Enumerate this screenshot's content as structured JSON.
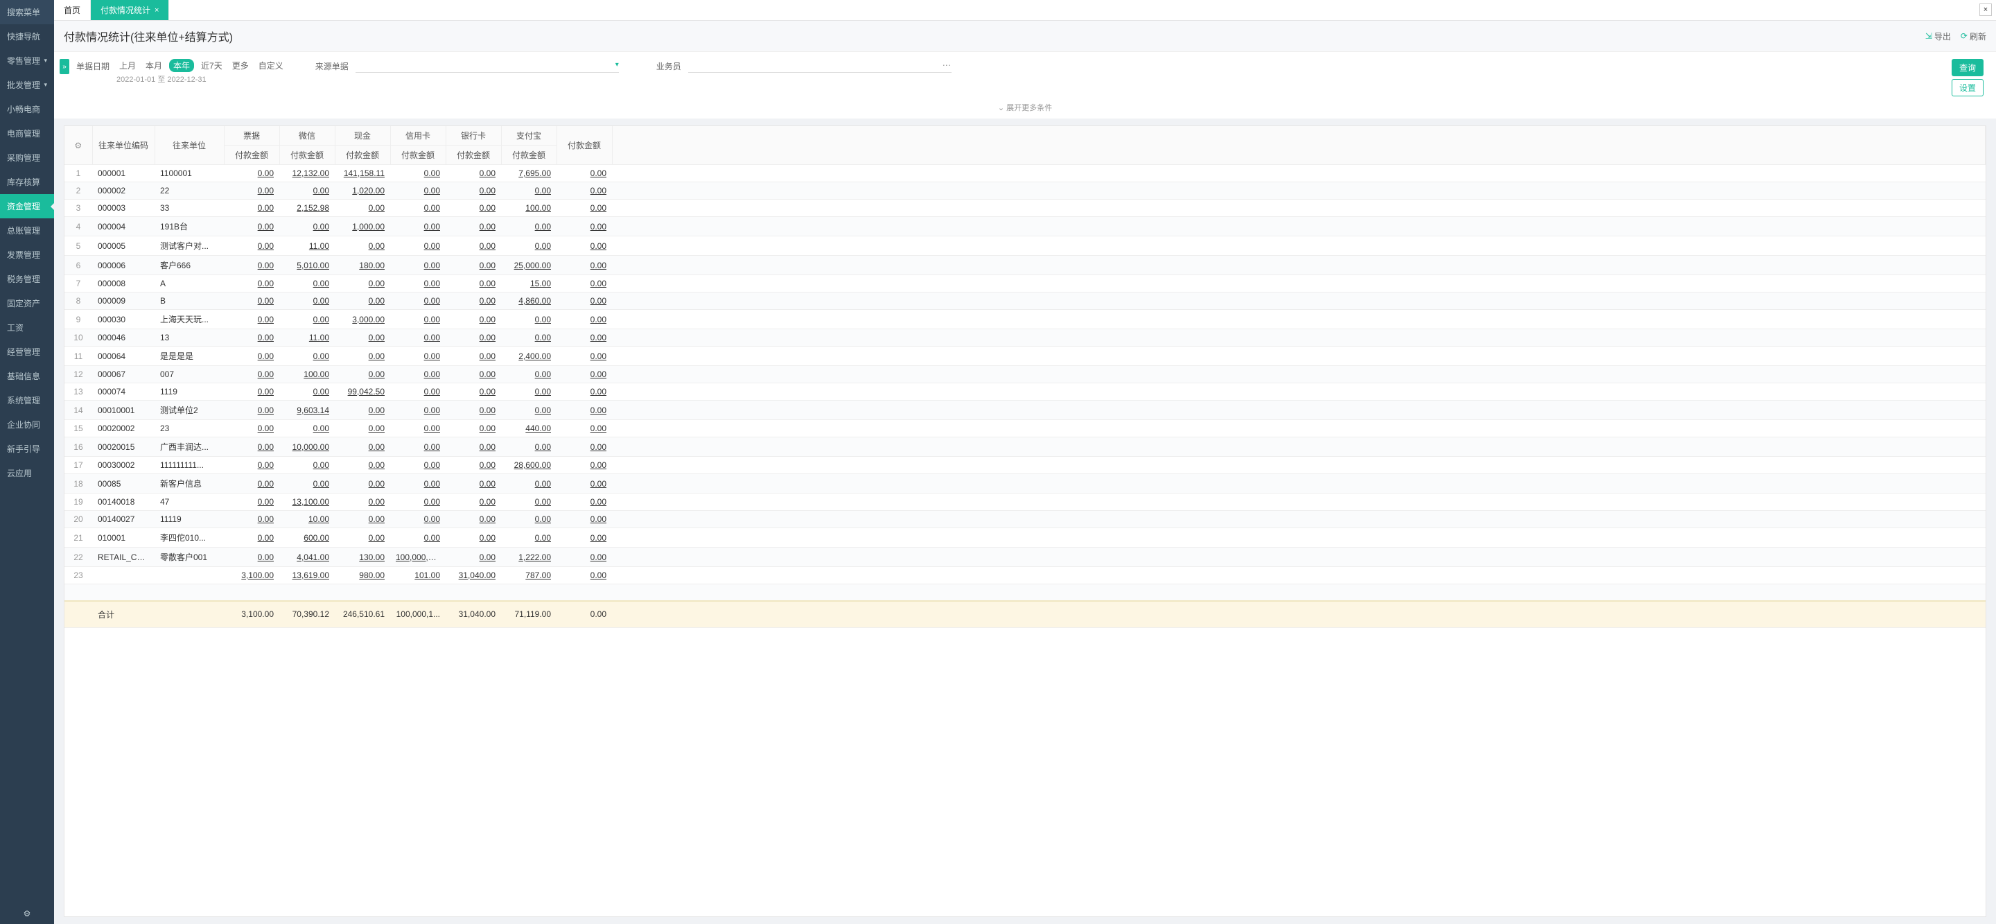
{
  "sidebar": {
    "items": [
      {
        "label": "搜索菜单",
        "expandable": false
      },
      {
        "label": "快捷导航",
        "expandable": false
      },
      {
        "label": "零售管理",
        "expandable": true
      },
      {
        "label": "批发管理",
        "expandable": true
      },
      {
        "label": "小畅电商",
        "expandable": false
      },
      {
        "label": "电商管理",
        "expandable": false
      },
      {
        "label": "采购管理",
        "expandable": false
      },
      {
        "label": "库存核算",
        "expandable": false
      },
      {
        "label": "资金管理",
        "expandable": false,
        "active": true
      },
      {
        "label": "总账管理",
        "expandable": false
      },
      {
        "label": "发票管理",
        "expandable": false
      },
      {
        "label": "税务管理",
        "expandable": false
      },
      {
        "label": "固定资产",
        "expandable": false
      },
      {
        "label": "工资",
        "expandable": false
      },
      {
        "label": "经营管理",
        "expandable": false
      },
      {
        "label": "基础信息",
        "expandable": false
      },
      {
        "label": "系统管理",
        "expandable": false
      },
      {
        "label": "企业协同",
        "expandable": false
      },
      {
        "label": "新手引导",
        "expandable": false
      },
      {
        "label": "云应用",
        "expandable": false
      }
    ]
  },
  "tabs": [
    {
      "label": "首页",
      "closable": false
    },
    {
      "label": "付款情况统计",
      "closable": true,
      "active": true
    }
  ],
  "page": {
    "title": "付款情况统计(往来单位+结算方式)",
    "export_label": "导出",
    "refresh_label": "刷新"
  },
  "filter": {
    "date_label": "单据日期",
    "date_opts": [
      "上月",
      "本月",
      "本年",
      "近7天",
      "更多",
      "自定义"
    ],
    "date_active_idx": 2,
    "date_range": "2022-01-01 至 2022-12-31",
    "source_label": "来源单据",
    "sales_label": "业务员",
    "btn_query": "查询",
    "btn_config": "设置",
    "expand_more": "展开更多条件"
  },
  "table": {
    "group_headers": [
      "",
      "",
      "",
      "票据",
      "微信",
      "现金",
      "信用卡",
      "银行卡",
      "支付宝",
      ""
    ],
    "sub_headers": [
      "",
      "往来单位编码",
      "往来单位",
      "付款金额",
      "付款金额",
      "付款金额",
      "付款金额",
      "付款金额",
      "付款金额",
      "付款金额"
    ],
    "rows": [
      {
        "idx": "1",
        "code": "000001",
        "name": "1100001",
        "amts": [
          "0.00",
          "12,132.00",
          "141,158.11",
          "0.00",
          "0.00",
          "7,695.00",
          "0.00"
        ]
      },
      {
        "idx": "2",
        "code": "000002",
        "name": "22",
        "amts": [
          "0.00",
          "0.00",
          "1,020.00",
          "0.00",
          "0.00",
          "0.00",
          "0.00"
        ]
      },
      {
        "idx": "3",
        "code": "000003",
        "name": "33",
        "amts": [
          "0.00",
          "2,152.98",
          "0.00",
          "0.00",
          "0.00",
          "100.00",
          "0.00"
        ]
      },
      {
        "idx": "4",
        "code": "000004",
        "name": "191B台",
        "amts": [
          "0.00",
          "0.00",
          "1,000.00",
          "0.00",
          "0.00",
          "0.00",
          "0.00"
        ]
      },
      {
        "idx": "5",
        "code": "000005",
        "name": "测试客户对...",
        "amts": [
          "0.00",
          "11.00",
          "0.00",
          "0.00",
          "0.00",
          "0.00",
          "0.00"
        ]
      },
      {
        "idx": "6",
        "code": "000006",
        "name": "客户666",
        "amts": [
          "0.00",
          "5,010.00",
          "180.00",
          "0.00",
          "0.00",
          "25,000.00",
          "0.00"
        ]
      },
      {
        "idx": "7",
        "code": "000008",
        "name": "A",
        "amts": [
          "0.00",
          "0.00",
          "0.00",
          "0.00",
          "0.00",
          "15.00",
          "0.00"
        ]
      },
      {
        "idx": "8",
        "code": "000009",
        "name": "B",
        "amts": [
          "0.00",
          "0.00",
          "0.00",
          "0.00",
          "0.00",
          "4,860.00",
          "0.00"
        ]
      },
      {
        "idx": "9",
        "code": "000030",
        "name": "上海天天玩...",
        "amts": [
          "0.00",
          "0.00",
          "3,000.00",
          "0.00",
          "0.00",
          "0.00",
          "0.00"
        ]
      },
      {
        "idx": "10",
        "code": "000046",
        "name": "13",
        "amts": [
          "0.00",
          "11.00",
          "0.00",
          "0.00",
          "0.00",
          "0.00",
          "0.00"
        ]
      },
      {
        "idx": "11",
        "code": "000064",
        "name": "是是是是",
        "amts": [
          "0.00",
          "0.00",
          "0.00",
          "0.00",
          "0.00",
          "2,400.00",
          "0.00"
        ]
      },
      {
        "idx": "12",
        "code": "000067",
        "name": "007",
        "amts": [
          "0.00",
          "100.00",
          "0.00",
          "0.00",
          "0.00",
          "0.00",
          "0.00"
        ]
      },
      {
        "idx": "13",
        "code": "000074",
        "name": "1119",
        "amts": [
          "0.00",
          "0.00",
          "99,042.50",
          "0.00",
          "0.00",
          "0.00",
          "0.00"
        ]
      },
      {
        "idx": "14",
        "code": "00010001",
        "name": "测试单位2",
        "amts": [
          "0.00",
          "9,603.14",
          "0.00",
          "0.00",
          "0.00",
          "0.00",
          "0.00"
        ]
      },
      {
        "idx": "15",
        "code": "00020002",
        "name": "23",
        "amts": [
          "0.00",
          "0.00",
          "0.00",
          "0.00",
          "0.00",
          "440.00",
          "0.00"
        ]
      },
      {
        "idx": "16",
        "code": "00020015",
        "name": "广西丰润达...",
        "amts": [
          "0.00",
          "10,000.00",
          "0.00",
          "0.00",
          "0.00",
          "0.00",
          "0.00"
        ]
      },
      {
        "idx": "17",
        "code": "00030002",
        "name": "111111111...",
        "amts": [
          "0.00",
          "0.00",
          "0.00",
          "0.00",
          "0.00",
          "28,600.00",
          "0.00"
        ]
      },
      {
        "idx": "18",
        "code": "00085",
        "name": "新客户信息",
        "amts": [
          "0.00",
          "0.00",
          "0.00",
          "0.00",
          "0.00",
          "0.00",
          "0.00"
        ]
      },
      {
        "idx": "19",
        "code": "00140018",
        "name": "47",
        "amts": [
          "0.00",
          "13,100.00",
          "0.00",
          "0.00",
          "0.00",
          "0.00",
          "0.00"
        ]
      },
      {
        "idx": "20",
        "code": "00140027",
        "name": "11119",
        "amts": [
          "0.00",
          "10.00",
          "0.00",
          "0.00",
          "0.00",
          "0.00",
          "0.00"
        ]
      },
      {
        "idx": "21",
        "code": "010001",
        "name": "李四佗010...",
        "amts": [
          "0.00",
          "600.00",
          "0.00",
          "0.00",
          "0.00",
          "0.00",
          "0.00"
        ]
      },
      {
        "idx": "22",
        "code": "RETAIL_CU...",
        "name": "零散客户001",
        "amts": [
          "0.00",
          "4,041.00",
          "130.00",
          "100,000,000.00",
          "0.00",
          "1,222.00",
          "0.00"
        ]
      },
      {
        "idx": "23",
        "code": "",
        "name": "",
        "amts": [
          "3,100.00",
          "13,619.00",
          "980.00",
          "101.00",
          "31,040.00",
          "787.00",
          "0.00"
        ]
      }
    ],
    "total_label": "合计",
    "totals": [
      "3,100.00",
      "70,390.12",
      "246,510.61",
      "100,000,1...",
      "31,040.00",
      "71,119.00",
      "0.00"
    ]
  },
  "colors": {
    "accent": "#1abc9c",
    "sidebar_bg": "#2c3e50",
    "total_bg": "#fdf6e3"
  }
}
